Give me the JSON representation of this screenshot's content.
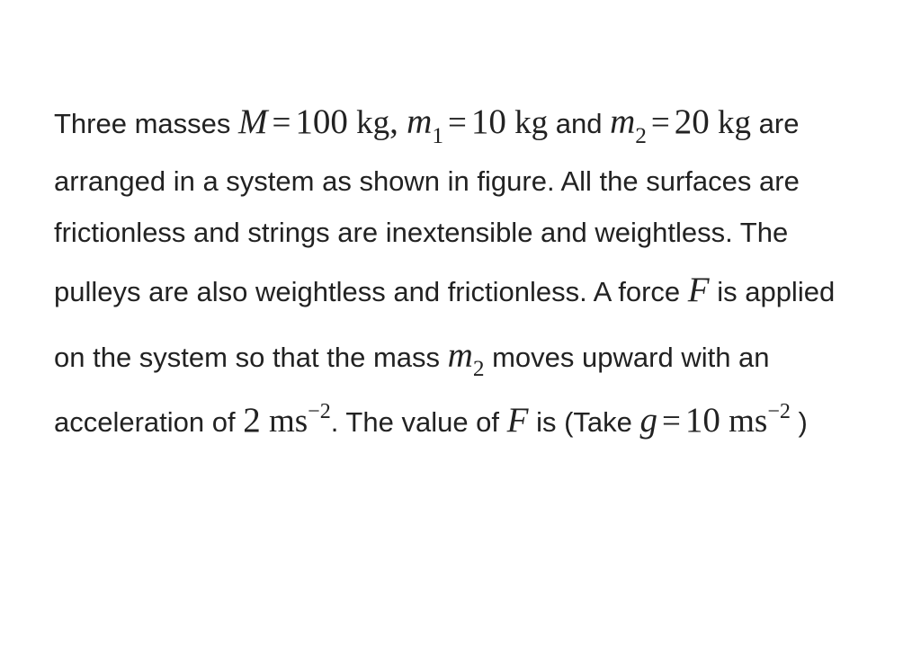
{
  "problem": {
    "text_color": "#222222",
    "background_color": "#ffffff",
    "body_fontsize": 31,
    "math_var_fontsize": 39,
    "math_num_fontsize": 39,
    "line_height": 1.85,
    "body_font": "Arial",
    "math_font": "Times New Roman",
    "t1": "Three masses ",
    "M_var": "M",
    "eq": "=",
    "M_val": "100",
    "kg": "kg",
    "comma": ",",
    "m1_var": "m",
    "m1_sub": "1",
    "m1_val": "10",
    "t2": "and ",
    "m2_var": "m",
    "m2_sub": "2",
    "m2_val": "20",
    "t3": " are arranged in a system as shown in figure. All the surfaces are frictionless and strings are inextensible and weightless. The pulleys are also weightless and frictionless. A force ",
    "F_var": "F",
    "t4": " is applied on the system so that the mass ",
    "t5": " moves upward with an acceleration of ",
    "a_val": "2",
    "ms": "ms",
    "a_exp": "−2",
    "t6": ". The value of ",
    "t7": " is (Take ",
    "g_var": "g",
    "g_val": "10",
    "t8": " )"
  }
}
